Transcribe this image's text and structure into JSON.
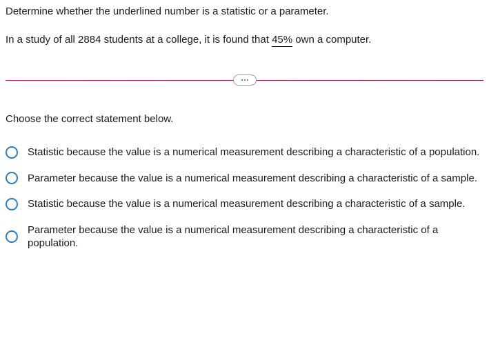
{
  "question": {
    "instruction": "Determine whether the underlined number is a statistic or a parameter.",
    "scenario_pre": "In a study of all 2884 students at a college, it is found that ",
    "underlined_value": "45%",
    "scenario_post": " own a computer."
  },
  "prompt": "Choose the correct statement below.",
  "options": {
    "a": "Statistic because the value is a numerical measurement describing a characteristic of a population.",
    "b": "Parameter because the value is a numerical measurement describing a characteristic of a sample.",
    "c": "Statistic because the value is a numerical measurement describing a characteristic of a sample.",
    "d": "Parameter because the value is a numerical measurement describing a characteristic of a population."
  },
  "colors": {
    "divider_gradient_start": "#d4145a",
    "divider_gradient_end": "#8a0f3f",
    "radio_border": "#2b7bbf",
    "text": "#1a1a1a",
    "background": "#ffffff"
  }
}
